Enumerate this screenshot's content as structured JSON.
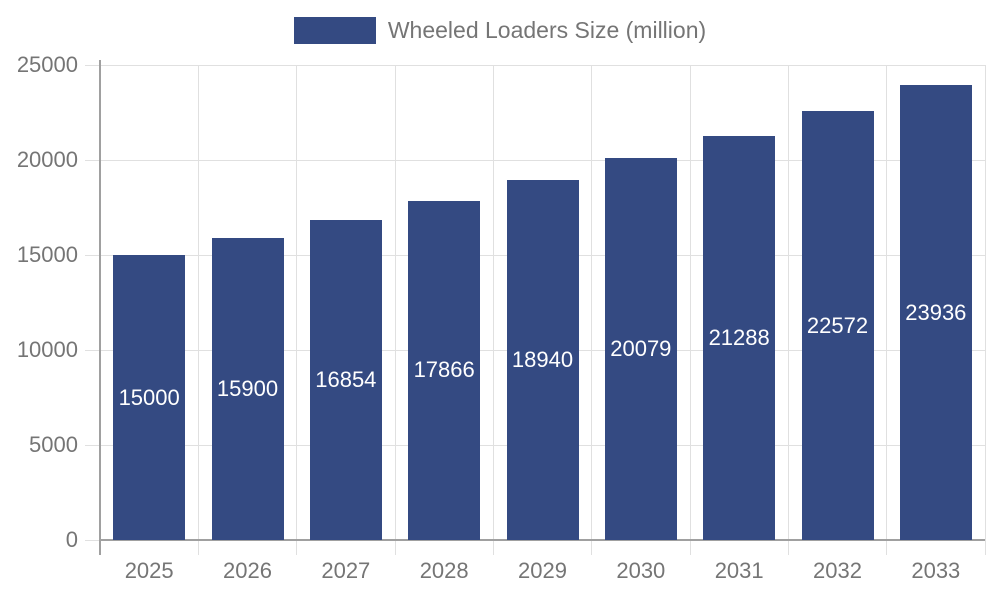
{
  "chart_data": {
    "type": "bar",
    "title": "Wheeled Loaders Size (million)",
    "legend": "Wheeled Loaders Size (million)",
    "series_name": "Wheeled Loaders Size (million)",
    "categories": [
      "2025",
      "2026",
      "2027",
      "2028",
      "2029",
      "2030",
      "2031",
      "2032",
      "2033"
    ],
    "values": [
      15000,
      15900,
      16854,
      17866,
      18940,
      20079,
      21288,
      22572,
      23936
    ],
    "xlabel": "",
    "ylabel": "",
    "ylim": [
      0,
      25000
    ],
    "y_ticks": [
      0,
      5000,
      10000,
      15000,
      20000,
      25000
    ],
    "grid": true,
    "legend_position": "top-center",
    "value_label_position": "inside-center"
  },
  "colors": {
    "bar": "#344a82",
    "grid": "#e0e0e0",
    "axis": "#a0a0a0",
    "tick_label": "#757575",
    "value_label": "#ffffff",
    "legend_text": "#757575",
    "background": "#ffffff"
  }
}
